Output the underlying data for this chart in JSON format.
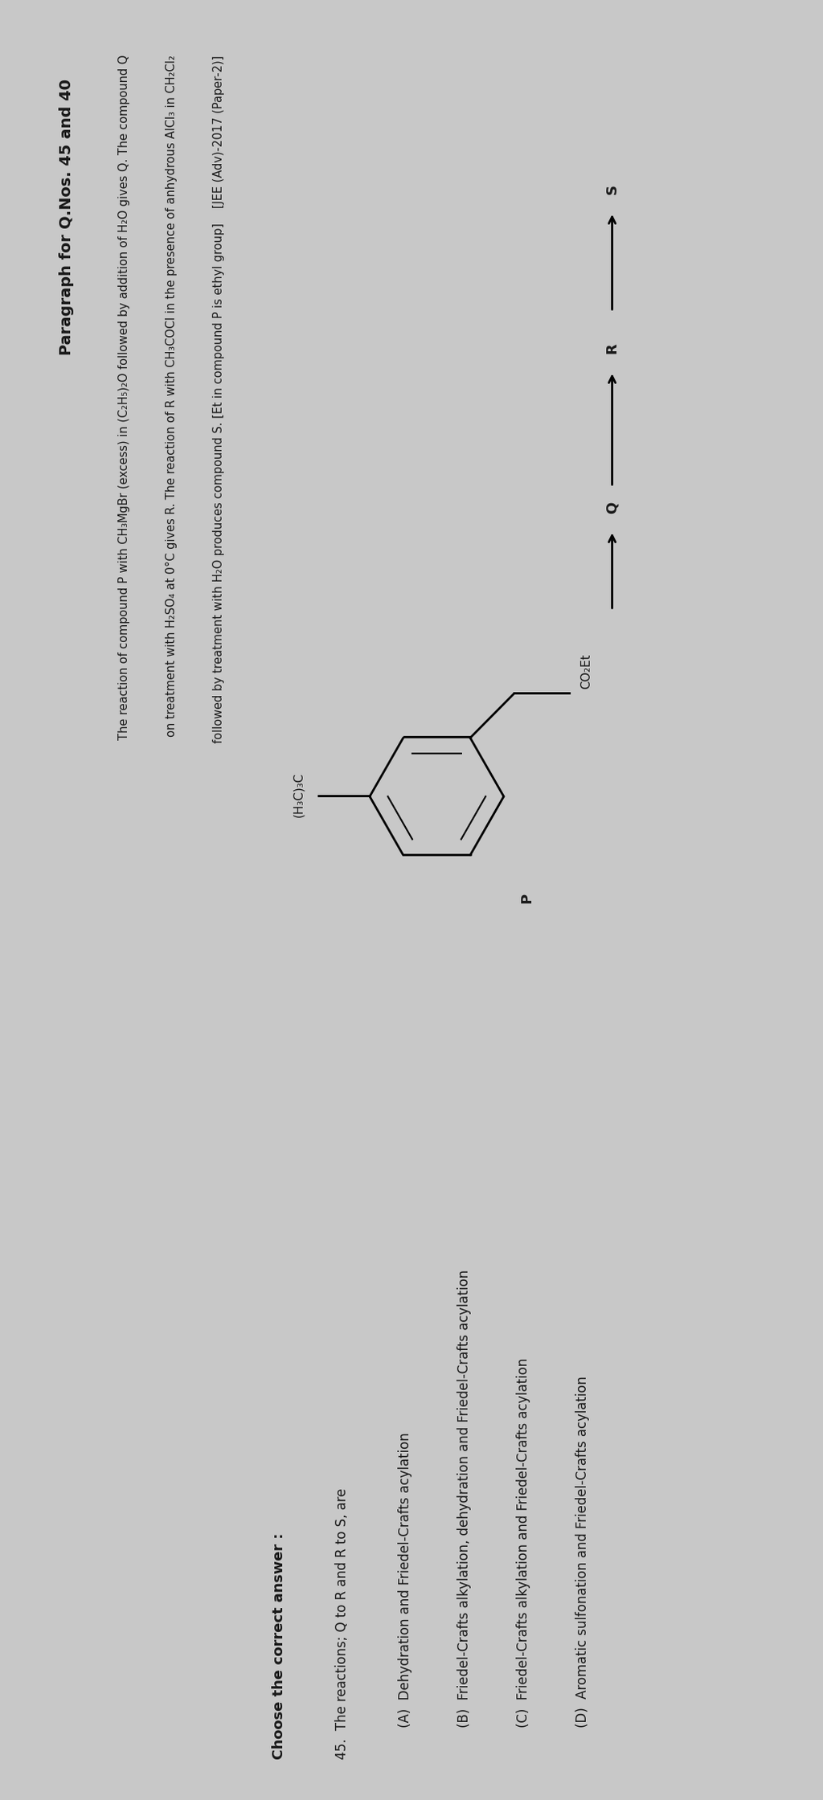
{
  "background_color": "#c8c8c8",
  "title": "Paragraph for Q.Nos. 45 and 40",
  "para_line1": "The reaction of compound P with CH₃MgBr (excess) in (C₂H₅)₂O followed by addition of H₂O gives Q. The compound Q",
  "para_line2": "on treatment with H₂SO₄ at 0°C gives R. The reaction of R with CH₃COCl in the presence of anhydrous AlCl₃ in CH₂Cl₂",
  "para_line3": "followed by treatment with H₂O produces compound S. [Et in compound P is ethyl group]",
  "jee_ref": "[JEE (Adv)-2017 (Paper-2)]",
  "q45_header": "Choose the correct answer :",
  "q45_num": "45.",
  "q45_text": "The reactions; Q to R and R to S, are",
  "opt_A": "(A)  Dehydration and Friedel-Crafts acylation",
  "opt_B": "(B)  Friedel-Crafts alkylation, dehydration and Friedel-Crafts acylation",
  "opt_C": "(C)  Friedel-Crafts alkylation and Friedel-Crafts acylation",
  "opt_D": "(D)  Aromatic sulfonation and Friedel-Crafts acylation",
  "label_P": "P",
  "label_Q": "Q",
  "label_R": "R",
  "label_S": "S",
  "sub_H3C3C": "(H₃C)₃C",
  "sub_CO2Et": "CO₂Et",
  "text_color": "#1a1a1a"
}
